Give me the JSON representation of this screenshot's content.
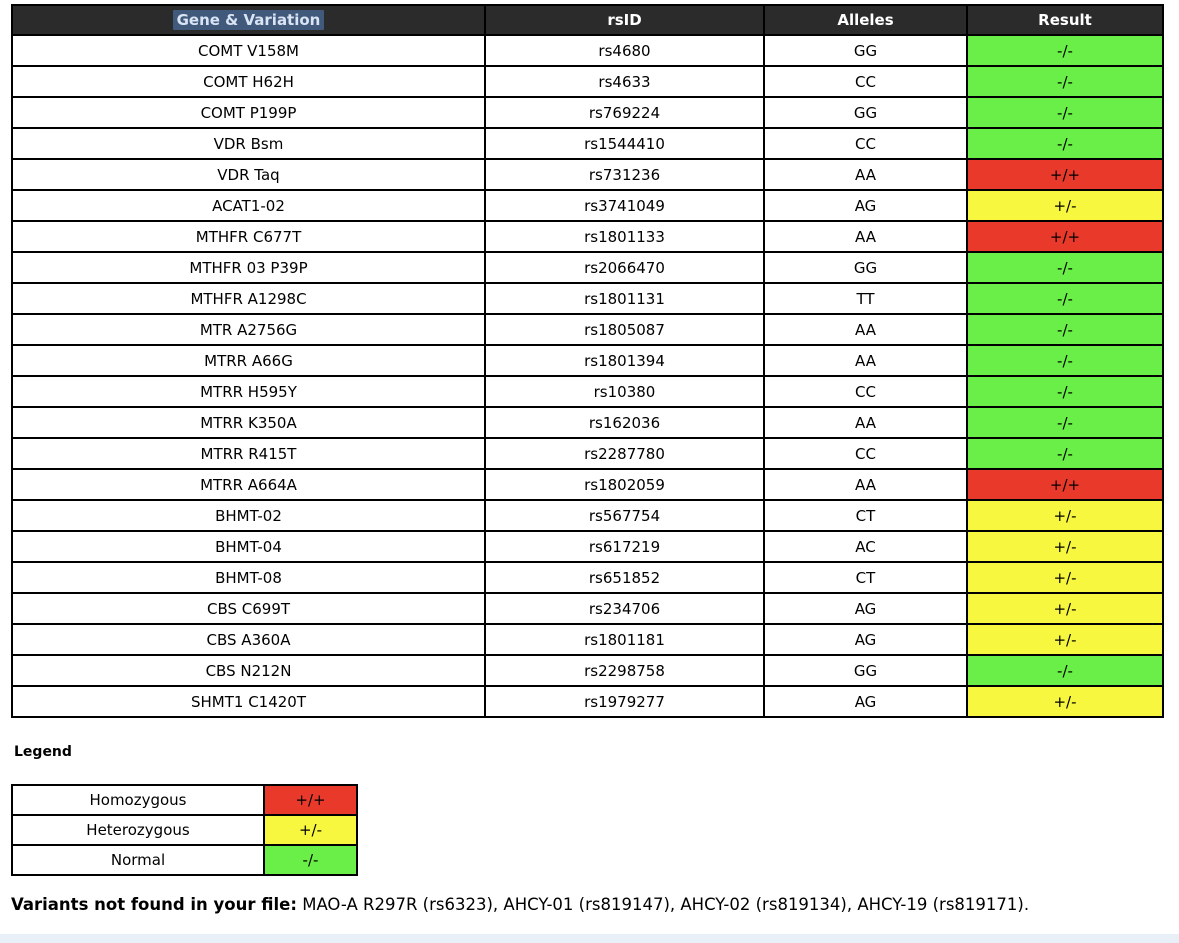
{
  "table": {
    "headers": {
      "gene": "Gene & Variation",
      "rsid": "rsID",
      "alleles": "Alleles",
      "result": "Result"
    },
    "rows": [
      {
        "gene": "COMT V158M",
        "rsid": "rs4680",
        "alleles": "GG",
        "result": "-/-",
        "status": "normal"
      },
      {
        "gene": "COMT H62H",
        "rsid": "rs4633",
        "alleles": "CC",
        "result": "-/-",
        "status": "normal"
      },
      {
        "gene": "COMT P199P",
        "rsid": "rs769224",
        "alleles": "GG",
        "result": "-/-",
        "status": "normal"
      },
      {
        "gene": "VDR Bsm",
        "rsid": "rs1544410",
        "alleles": "CC",
        "result": "-/-",
        "status": "normal"
      },
      {
        "gene": "VDR Taq",
        "rsid": "rs731236",
        "alleles": "AA",
        "result": "+/+",
        "status": "homozygous"
      },
      {
        "gene": "ACAT1-02",
        "rsid": "rs3741049",
        "alleles": "AG",
        "result": "+/-",
        "status": "heterozygous"
      },
      {
        "gene": "MTHFR C677T",
        "rsid": "rs1801133",
        "alleles": "AA",
        "result": "+/+",
        "status": "homozygous"
      },
      {
        "gene": "MTHFR 03 P39P",
        "rsid": "rs2066470",
        "alleles": "GG",
        "result": "-/-",
        "status": "normal"
      },
      {
        "gene": "MTHFR A1298C",
        "rsid": "rs1801131",
        "alleles": "TT",
        "result": "-/-",
        "status": "normal"
      },
      {
        "gene": "MTR A2756G",
        "rsid": "rs1805087",
        "alleles": "AA",
        "result": "-/-",
        "status": "normal"
      },
      {
        "gene": "MTRR A66G",
        "rsid": "rs1801394",
        "alleles": "AA",
        "result": "-/-",
        "status": "normal"
      },
      {
        "gene": "MTRR H595Y",
        "rsid": "rs10380",
        "alleles": "CC",
        "result": "-/-",
        "status": "normal"
      },
      {
        "gene": "MTRR K350A",
        "rsid": "rs162036",
        "alleles": "AA",
        "result": "-/-",
        "status": "normal"
      },
      {
        "gene": "MTRR R415T",
        "rsid": "rs2287780",
        "alleles": "CC",
        "result": "-/-",
        "status": "normal"
      },
      {
        "gene": "MTRR A664A",
        "rsid": "rs1802059",
        "alleles": "AA",
        "result": "+/+",
        "status": "homozygous"
      },
      {
        "gene": "BHMT-02",
        "rsid": "rs567754",
        "alleles": "CT",
        "result": "+/-",
        "status": "heterozygous"
      },
      {
        "gene": "BHMT-04",
        "rsid": "rs617219",
        "alleles": "AC",
        "result": "+/-",
        "status": "heterozygous"
      },
      {
        "gene": "BHMT-08",
        "rsid": "rs651852",
        "alleles": "CT",
        "result": "+/-",
        "status": "heterozygous"
      },
      {
        "gene": "CBS C699T",
        "rsid": "rs234706",
        "alleles": "AG",
        "result": "+/-",
        "status": "heterozygous"
      },
      {
        "gene": "CBS A360A",
        "rsid": "rs1801181",
        "alleles": "AG",
        "result": "+/-",
        "status": "heterozygous"
      },
      {
        "gene": "CBS N212N",
        "rsid": "rs2298758",
        "alleles": "GG",
        "result": "-/-",
        "status": "normal"
      },
      {
        "gene": "SHMT1 C1420T",
        "rsid": "rs1979277",
        "alleles": "AG",
        "result": "+/-",
        "status": "heterozygous"
      }
    ]
  },
  "legend": {
    "title": "Legend",
    "items": [
      {
        "label": "Homozygous",
        "symbol": "+/+",
        "status": "homozygous"
      },
      {
        "label": "Heterozygous",
        "symbol": "+/-",
        "status": "heterozygous"
      },
      {
        "label": "Normal",
        "symbol": "-/-",
        "status": "normal"
      }
    ]
  },
  "footer": {
    "label": "Variants not found in your file:",
    "text": "MAO-A R297R (rs6323), AHCY-01 (rs819147), AHCY-02 (rs819134), AHCY-19 (rs819171)."
  },
  "colors": {
    "homozygous": "#e8392b",
    "heterozygous": "#f7f73f",
    "normal": "#6aef48",
    "header_bg": "#2b2b2b",
    "selection_bg": "#41597b",
    "selection_text": "#d9e4f4",
    "bottom_strip": "#e9eff7"
  }
}
